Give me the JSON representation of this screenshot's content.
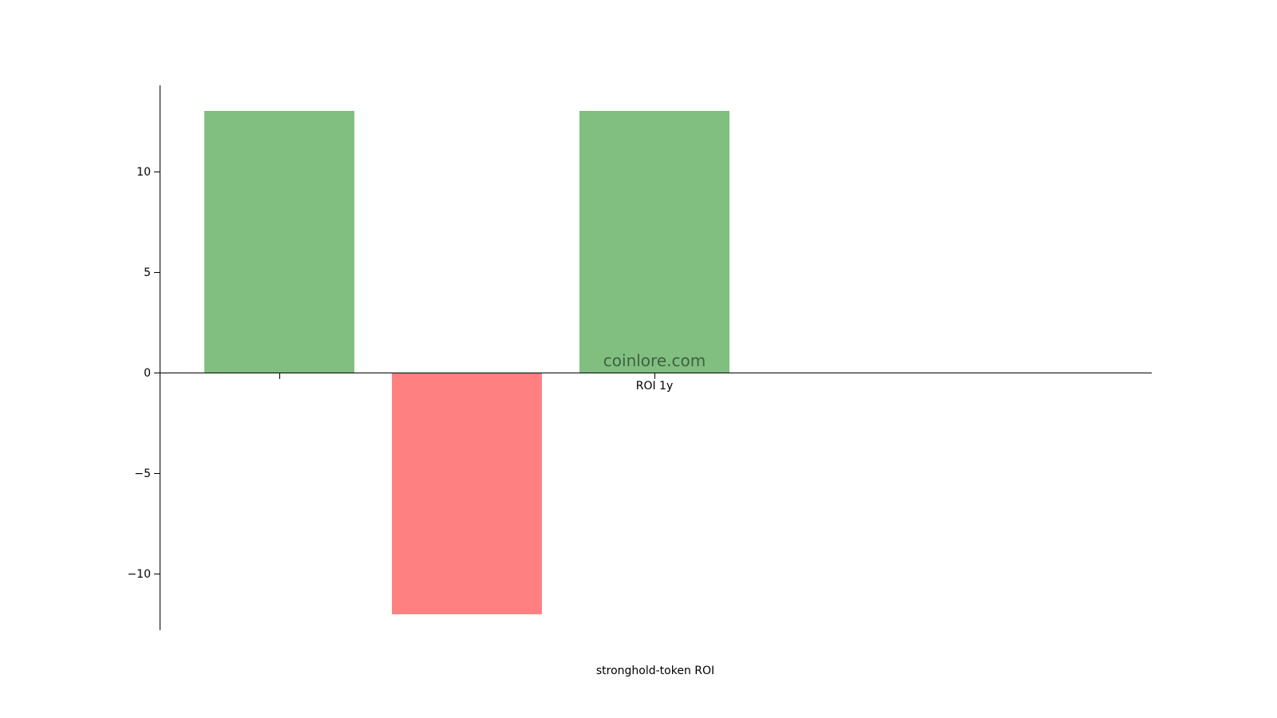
{
  "chart_data": {
    "type": "bar",
    "title": "",
    "xlabel": "stronghold-token ROI",
    "ylabel": "",
    "categories": [
      "",
      "",
      "ROI 1y"
    ],
    "values": [
      13,
      -12,
      13
    ],
    "bar_colors": [
      "#80bf80",
      "#ff8080",
      "#80bf80"
    ],
    "positive_color": "#80bf80",
    "negative_color": "#ff8080",
    "y_ticks": [
      {
        "value": 10,
        "label": "10"
      },
      {
        "value": 5,
        "label": "5"
      },
      {
        "value": 0,
        "label": "0"
      },
      {
        "value": -5,
        "label": "−5"
      },
      {
        "value": -10,
        "label": "−10"
      }
    ],
    "ylim": [
      -12.8,
      14.1
    ],
    "grid": false,
    "legend_position": "none",
    "watermark": "coinlore.com",
    "watermark_color": "#000000",
    "watermark_opacity": 0.5,
    "axis_color": "#000000",
    "background_color": "#ffffff"
  }
}
